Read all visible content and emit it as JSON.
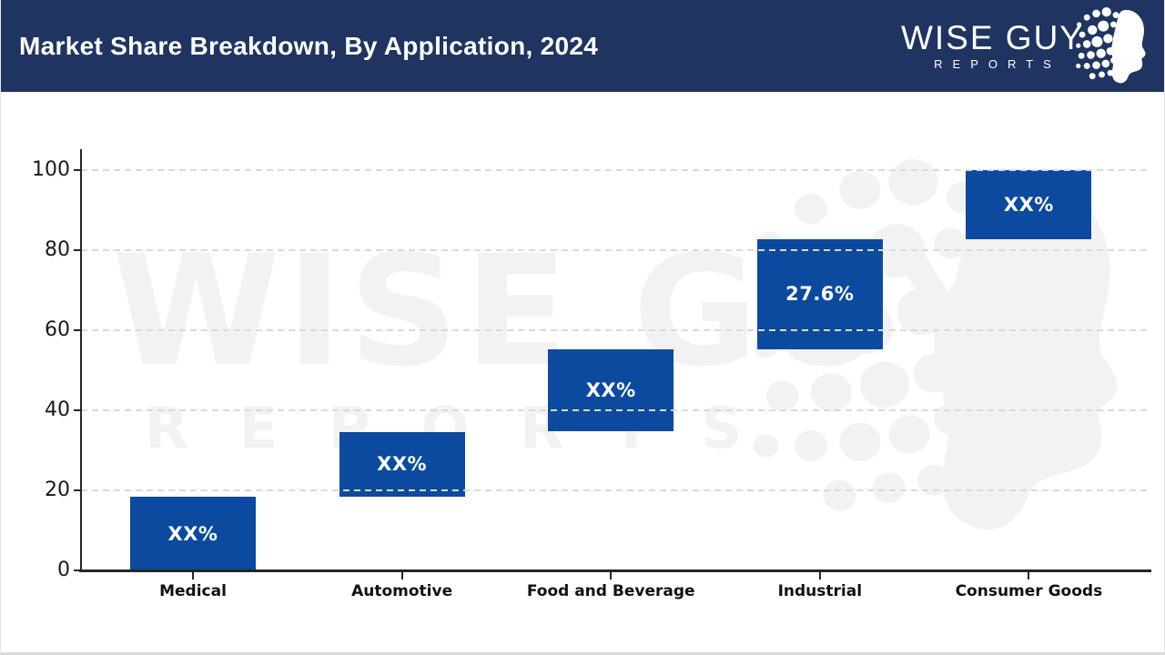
{
  "header": {
    "title": "Market Share Breakdown, By Application, 2024",
    "logo": {
      "line1": "WISE GUY",
      "line2": "REPORTS"
    }
  },
  "watermark": {
    "line1": "WISE GUY",
    "line2": "REPORTS"
  },
  "colors": {
    "header_bg": "#1f3461",
    "bar": "#0b4a9e",
    "grid": "#d9d9d9",
    "axis": "#262626",
    "watermark": "#f2f2f2",
    "bar_label": "#ffffff"
  },
  "chart_data": {
    "type": "bar",
    "subtype": "waterfall-floating-segments",
    "title": "Market Share Breakdown, By Application, 2024",
    "xlabel": "",
    "ylabel": "",
    "ylim": [
      0,
      100
    ],
    "yticks": [
      0,
      20,
      40,
      60,
      80,
      100
    ],
    "grid": "horizontal-dashed-over-bars",
    "legend": "none",
    "categories": [
      "Medical",
      "Automotive",
      "Food and Beverage",
      "Industrial",
      "Consumer Goods"
    ],
    "bars": [
      {
        "category": "Medical",
        "start": 0,
        "end": 18.4,
        "label": "XX%"
      },
      {
        "category": "Automotive",
        "start": 18.5,
        "end": 34.5,
        "label": "XX%"
      },
      {
        "category": "Food and Beverage",
        "start": 34.8,
        "end": 55.2,
        "label": "XX%"
      },
      {
        "category": "Industrial",
        "start": 55.2,
        "end": 82.8,
        "label": "27.6%"
      },
      {
        "category": "Consumer Goods",
        "start": 82.8,
        "end": 100,
        "label": "XX%"
      }
    ]
  }
}
